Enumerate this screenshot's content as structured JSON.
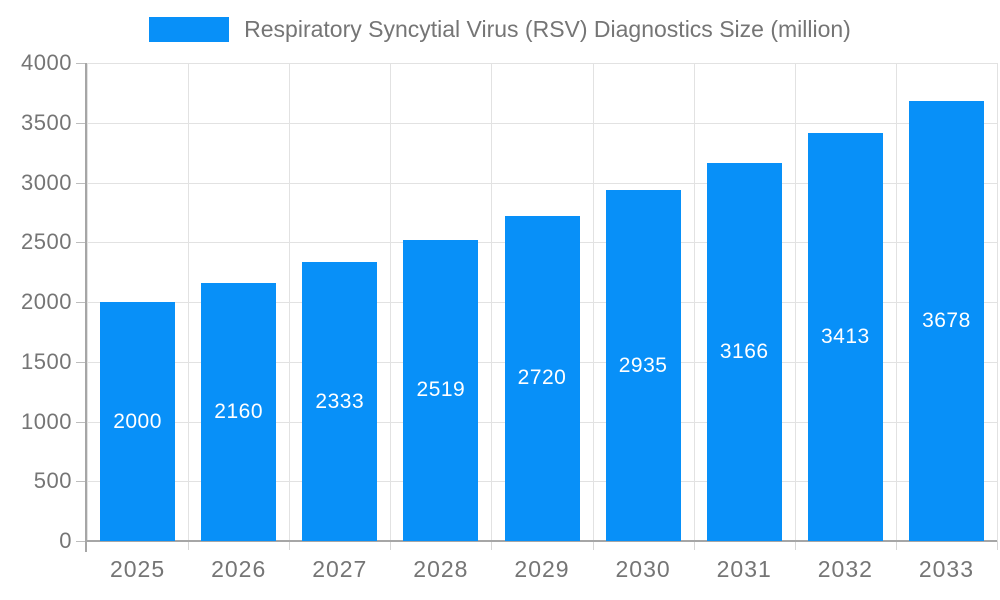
{
  "legend": {
    "label": "Respiratory Syncytial Virus (RSV) Diagnostics Size (million)"
  },
  "colors": {
    "bar": "#0890f8",
    "axis_text": "#757575",
    "grid": "#e2e2e2",
    "axis_line": "#a6a6a6",
    "bar_label": "#ffffff",
    "background": "#ffffff"
  },
  "chart_data": {
    "type": "bar",
    "categories": [
      "2025",
      "2026",
      "2027",
      "2028",
      "2029",
      "2030",
      "2031",
      "2032",
      "2033"
    ],
    "series": [
      {
        "name": "Respiratory Syncytial Virus (RSV) Diagnostics Size (million)",
        "values": [
          2000,
          2160,
          2333,
          2519,
          2720,
          2935,
          3166,
          3413,
          3678
        ]
      }
    ],
    "title": "",
    "xlabel": "",
    "ylabel": "",
    "ylim": [
      0,
      4000
    ],
    "yticks": [
      0,
      500,
      1000,
      1500,
      2000,
      2500,
      3000,
      3500,
      4000
    ],
    "grid": true,
    "legend_position": "top",
    "data_labels": "centered-white-inside-bars"
  }
}
